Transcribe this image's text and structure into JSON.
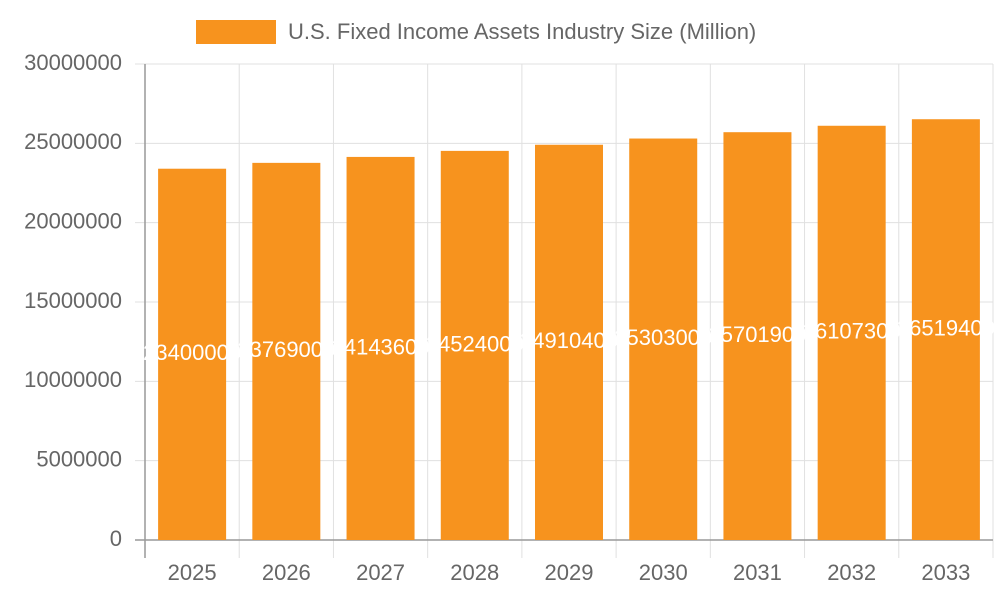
{
  "chart_data": {
    "type": "bar",
    "title": "U.S. Fixed Income Assets Industry Size (Million)",
    "categories": [
      "2025",
      "2026",
      "2027",
      "2028",
      "2029",
      "2030",
      "2031",
      "2032",
      "2033"
    ],
    "series": [
      {
        "name": "U.S. Fixed Income Assets Industry Size (Million)",
        "color": "#f7931e",
        "values": [
          23400000,
          23769000,
          24143600,
          24524000,
          24910400,
          25303000,
          25701900,
          26107300,
          26519400
        ]
      }
    ],
    "ylim": [
      0,
      30000000
    ],
    "yticks": [
      0,
      5000000,
      10000000,
      15000000,
      20000000,
      25000000,
      30000000
    ],
    "grid": true,
    "legend": "top"
  }
}
